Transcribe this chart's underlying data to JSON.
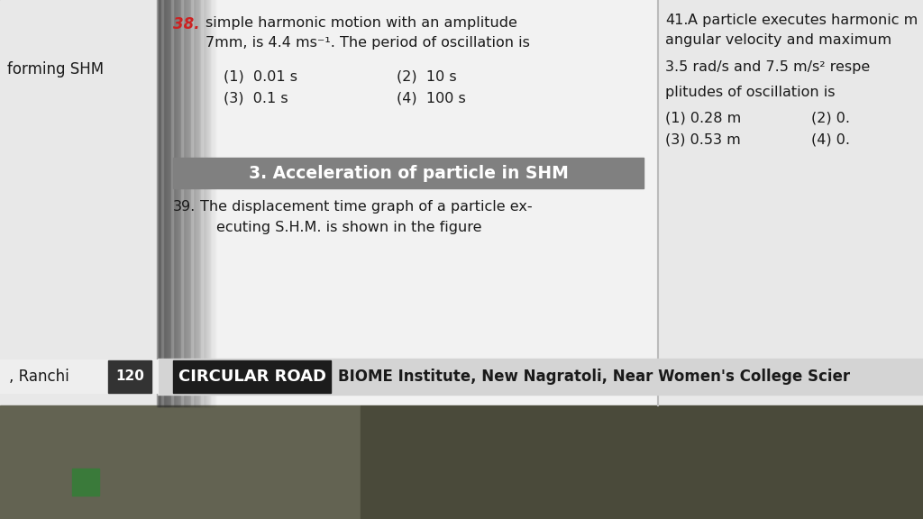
{
  "bg_color": "#5a5a4a",
  "q38_num": "38.",
  "q38_line1": "simple harmonic motion with an amplitude",
  "q38_line2": "7mm, is 4.4 ms⁻¹. The period of oscillation is",
  "q38_opt1": "(1)  0.01 s",
  "q38_opt2": "(2)  10 s",
  "q38_opt3": "(3)  0.1 s",
  "q38_opt4": "(4)  100 s",
  "section_header": "3. Acceleration of particle in SHM",
  "section_header_bg": "#808080",
  "section_header_color": "#ffffff",
  "q39_num": "39.",
  "q39_line1": "The displacement time graph of a particle ex-",
  "q39_line2": "ecuting S.H.M. is shown in the figure",
  "q41_num": "41.",
  "q41_line1": "A particle executes harmonic m",
  "q41_line2": "angular velocity and maximum",
  "q41_line3": "3.5 rad/s and 7.5 m/s² respe",
  "q41_line4": "plitudes of oscillation is",
  "q41_opt1": "(1) 0.28 m",
  "q41_opt2": "(2) 0.",
  "q41_opt3": "(3) 0.53 m",
  "q41_opt4": "(4) 0.",
  "left_margin_text": "forming SHM",
  "ranchi_text": ", Ranchi",
  "ranchi_num": "120",
  "ranchi_box_bg": "#333333",
  "ranchi_box_color": "#ffffff",
  "footer_left_bg": "#1c1c1c",
  "footer_left_text": "CIRCULAR ROAD",
  "footer_right_bg": "#d0d0d0",
  "footer_right_text": "BIOME Institute, New Nagratoli, Near Women's College Scier",
  "page_left_bg": "#f0f0f0",
  "page_center_bg": "#f2f2f2",
  "page_right_bg": "#e8e8e8",
  "col_divider_color": "#bbbbbb",
  "text_dark": "#1a1a1a",
  "num_red": "#cc2222"
}
